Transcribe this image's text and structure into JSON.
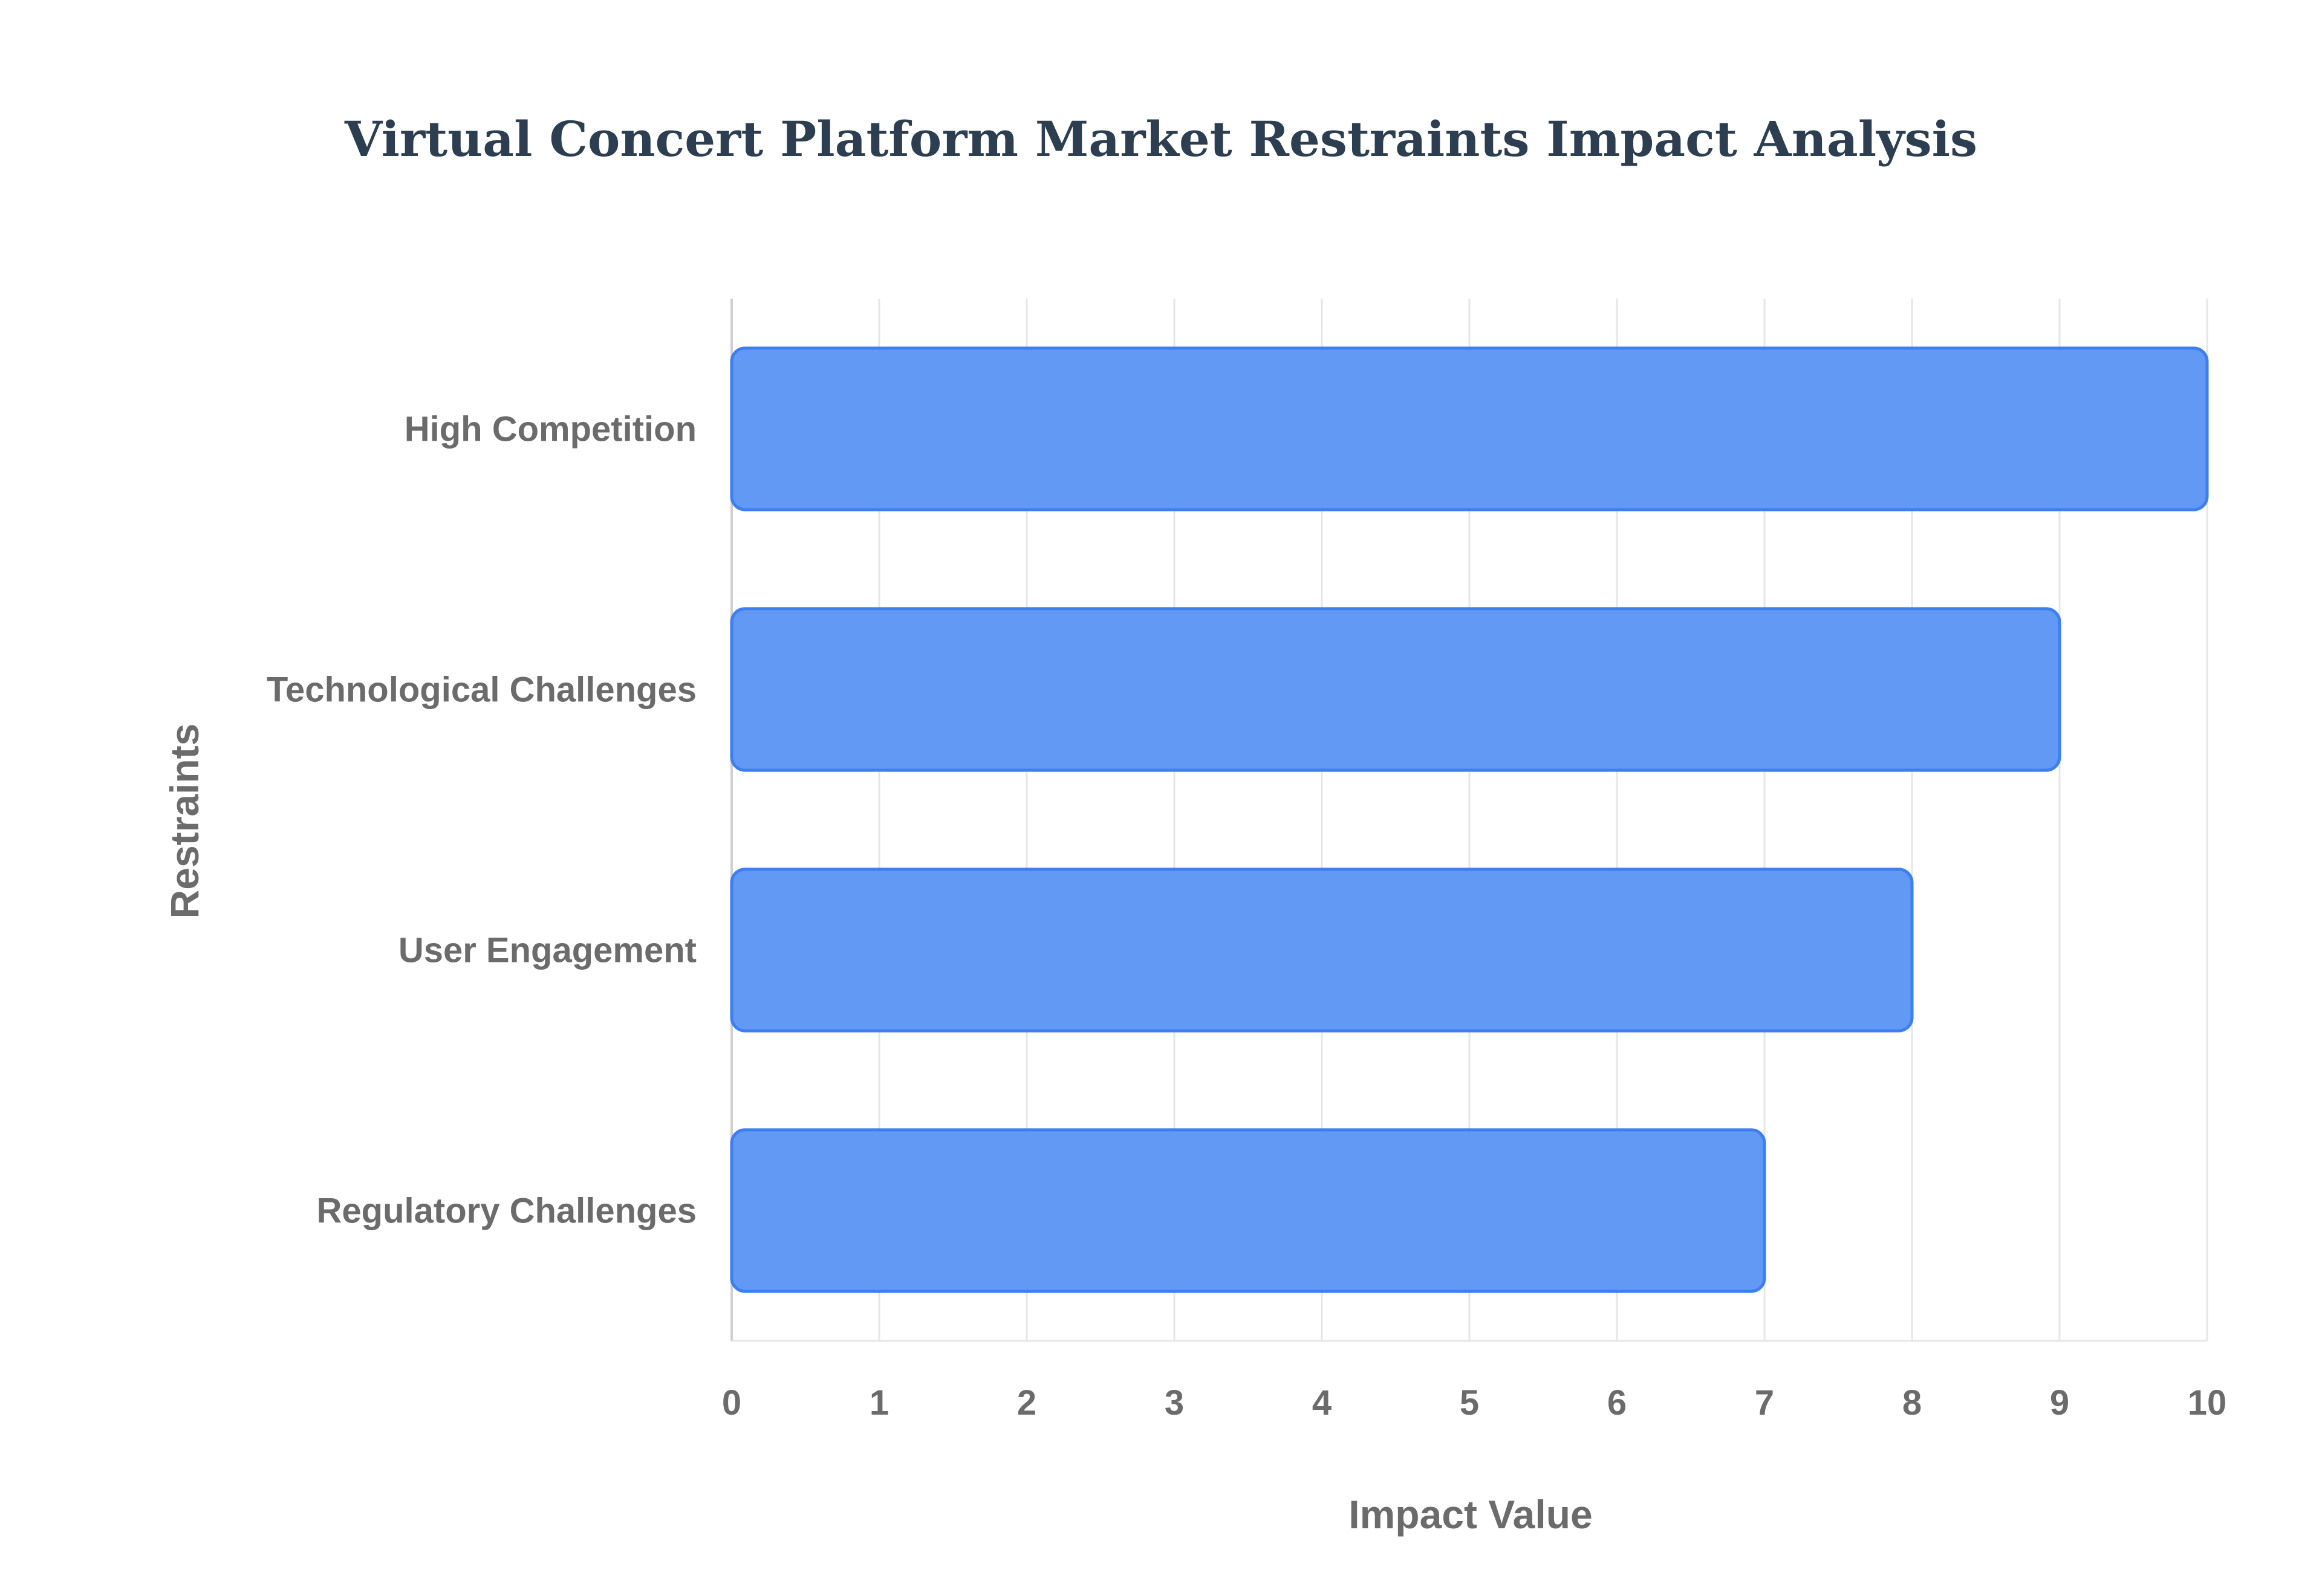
{
  "chart_data": {
    "type": "bar",
    "orientation": "horizontal",
    "title": "Virtual Concert Platform Market Restraints Impact Analysis",
    "xlabel": "Impact Value",
    "ylabel": "Restraints",
    "categories": [
      "High Competition",
      "Technological Challenges",
      "User Engagement",
      "Regulatory Challenges"
    ],
    "values": [
      10,
      9,
      8,
      7
    ],
    "xlim": [
      0,
      10
    ],
    "xticks": [
      "0",
      "1",
      "2",
      "3",
      "4",
      "5",
      "6",
      "7",
      "8",
      "9",
      "10"
    ],
    "grid": true,
    "legend": "none",
    "colors": {
      "bar_fill": "#6199f5",
      "bar_stroke": "#3d7ef0",
      "grid": "#e6e6e6",
      "text": "#6b6b6b",
      "title": "#2c3e50"
    }
  }
}
